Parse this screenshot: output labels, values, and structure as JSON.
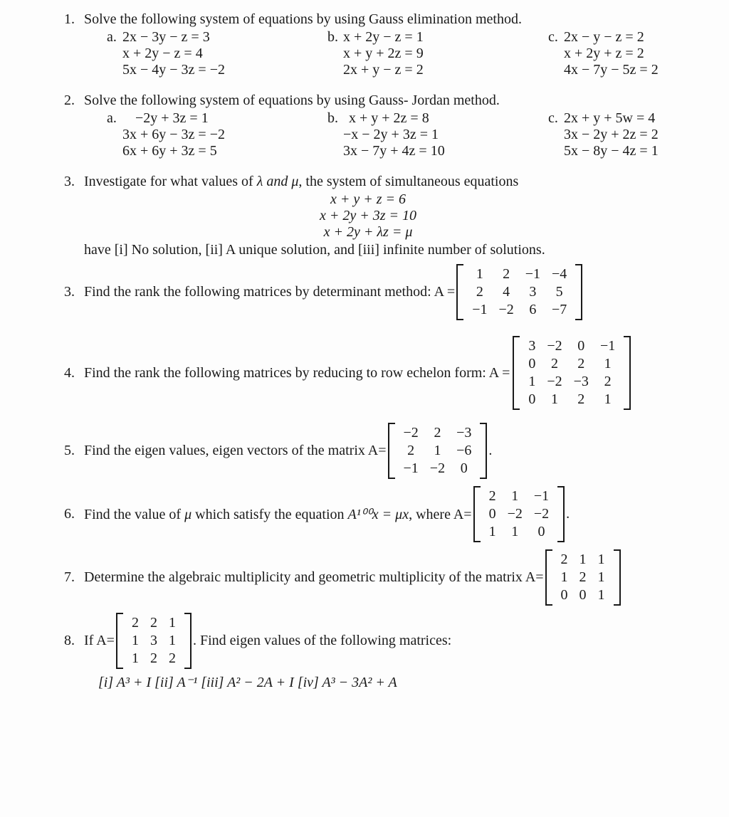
{
  "q1": {
    "prompt": "Solve the following system of equations by using Gauss elimination method.",
    "a": [
      "2x − 3y − z = 3",
      "x + 2y − z = 4",
      "5x − 4y − 3z = −2"
    ],
    "b": [
      "x + 2y − z = 1",
      "x + y + 2z = 9",
      "2x + y − z = 2"
    ],
    "c": [
      "2x − y − z = 2",
      "x + 2y + z = 2",
      "4x − 7y − 5z = 2"
    ]
  },
  "q2": {
    "prompt": "Solve the following system of equations by using Gauss- Jordan method.",
    "a": [
      "−2y + 3z = 1",
      "3x + 6y − 3z = −2",
      "6x + 6y + 3z = 5"
    ],
    "b": [
      "x + y + 2z = 8",
      "−x − 2y + 3z = 1",
      "3x − 7y + 4z = 10"
    ],
    "c": [
      "2x + y + 5w = 4",
      "3x − 2y + 2z = 2",
      "5x − 8y − 4z = 1"
    ]
  },
  "q3a": {
    "prompt_before": "Investigate for what values of ",
    "vars": "λ and μ",
    "prompt_after": ", the system of simultaneous equations",
    "eqs": [
      "x + y + z = 6",
      "x + 2y + 3z = 10",
      "x + 2y + λz = μ"
    ],
    "have": "have [i] No solution, [ii] A unique solution, and [iii] infinite number of solutions."
  },
  "q3b": {
    "prompt": "Find the rank the following matrices by determinant method: A =",
    "matrix": [
      [
        "1",
        "2",
        "−1",
        "−4"
      ],
      [
        "2",
        "4",
        "3",
        "5"
      ],
      [
        "−1",
        "−2",
        "6",
        "−7"
      ]
    ]
  },
  "q4": {
    "prompt": "Find the rank the following matrices by reducing to row echelon form:  A =",
    "matrix": [
      [
        "3",
        "−2",
        "0",
        "−1"
      ],
      [
        "0",
        "2",
        "2",
        "1"
      ],
      [
        "1",
        "−2",
        "−3",
        "2"
      ],
      [
        "0",
        "1",
        "2",
        "1"
      ]
    ]
  },
  "q5": {
    "prompt": "Find the eigen values, eigen vectors of the matrix A=",
    "matrix": [
      [
        "−2",
        "2",
        "−3"
      ],
      [
        "2",
        "1",
        "−6"
      ],
      [
        "−1",
        "−2",
        "0"
      ]
    ],
    "suffix": "."
  },
  "q6": {
    "prompt_before": "Find the value of ",
    "mu": "μ",
    "prompt_mid": " which satisfy the equation ",
    "eq": "A¹⁰⁰x = μx",
    "prompt_after": ", where A=",
    "matrix": [
      [
        "2",
        "1",
        "−1"
      ],
      [
        "0",
        "−2",
        "−2"
      ],
      [
        "1",
        "1",
        "0"
      ]
    ],
    "suffix": "."
  },
  "q7": {
    "prompt": "Determine the algebraic multiplicity and geometric multiplicity of the matrix A=",
    "matrix": [
      [
        "2",
        "1",
        "1"
      ],
      [
        "1",
        "2",
        "1"
      ],
      [
        "0",
        "0",
        "1"
      ]
    ]
  },
  "q8": {
    "prefix": "If A=",
    "matrix": [
      [
        "2",
        "2",
        "1"
      ],
      [
        "1",
        "3",
        "1"
      ],
      [
        "1",
        "2",
        "2"
      ]
    ],
    "suffix": ". Find eigen values of the following matrices:",
    "parts": "[i] A³ + I   [ii] A⁻¹   [iii] A² − 2A + I   [iv] A³ − 3A² + A"
  },
  "labels": {
    "a": "a.",
    "b": "b.",
    "c": "c.",
    "n1": "1.",
    "n2": "2.",
    "n3": "3.",
    "n3b": "3.",
    "n4": "4.",
    "n5": "5.",
    "n6": "6.",
    "n7": "7.",
    "n8": "8."
  }
}
